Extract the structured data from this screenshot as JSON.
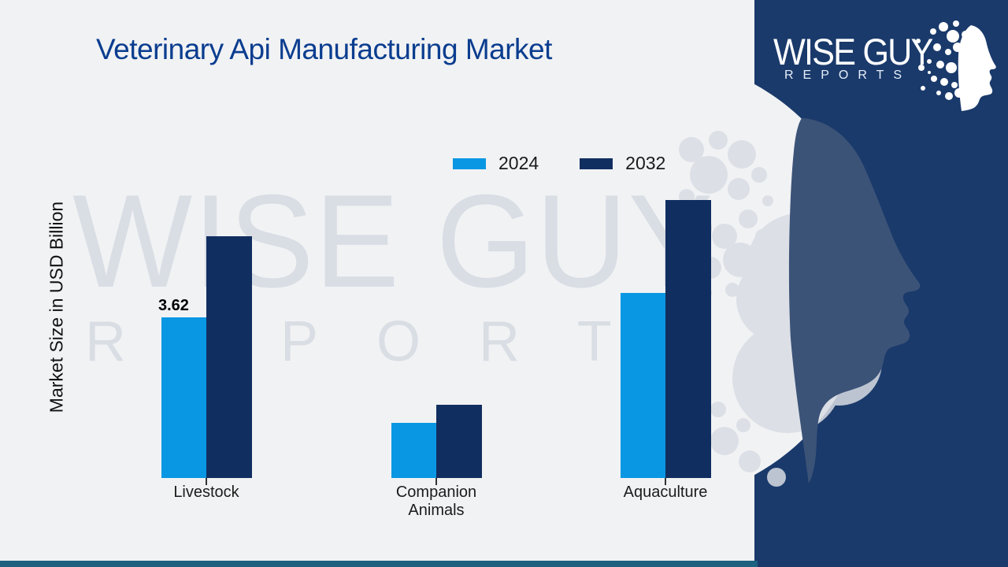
{
  "page": {
    "background_color": "#f1f2f4",
    "bottom_bar_color": "#1d6080",
    "right_panel_color": "#1a3a6b",
    "face_silhouette_color": "#3c5378",
    "watermark_color": "#d9dde4"
  },
  "branding": {
    "logo_title": "WISE GUY",
    "logo_subtitle": "REPORTS",
    "watermark_title": "WISE GUY",
    "watermark_subtitle": "REPORTS"
  },
  "chart_data": {
    "type": "bar",
    "title": "Veterinary Api Manufacturing Market",
    "title_color": "#0a3d8f",
    "xlabel": "",
    "ylabel": "Market Size in USD Billion",
    "categories": [
      "Livestock",
      "Companion Animals",
      "Aquaculture"
    ],
    "series": [
      {
        "name": "2024",
        "color": "#0997e3",
        "values": [
          3.62,
          1.24,
          4.17
        ],
        "labels": [
          "3.62",
          "",
          ""
        ]
      },
      {
        "name": "2032",
        "color": "#112e60",
        "values": [
          5.45,
          1.65,
          6.26
        ],
        "labels": [
          "",
          "",
          ""
        ]
      }
    ],
    "ylim": [
      0,
      7
    ],
    "grid": false,
    "axis_line": false,
    "legend_position": "top-center",
    "value_labels_shown": [
      "3.62"
    ]
  }
}
